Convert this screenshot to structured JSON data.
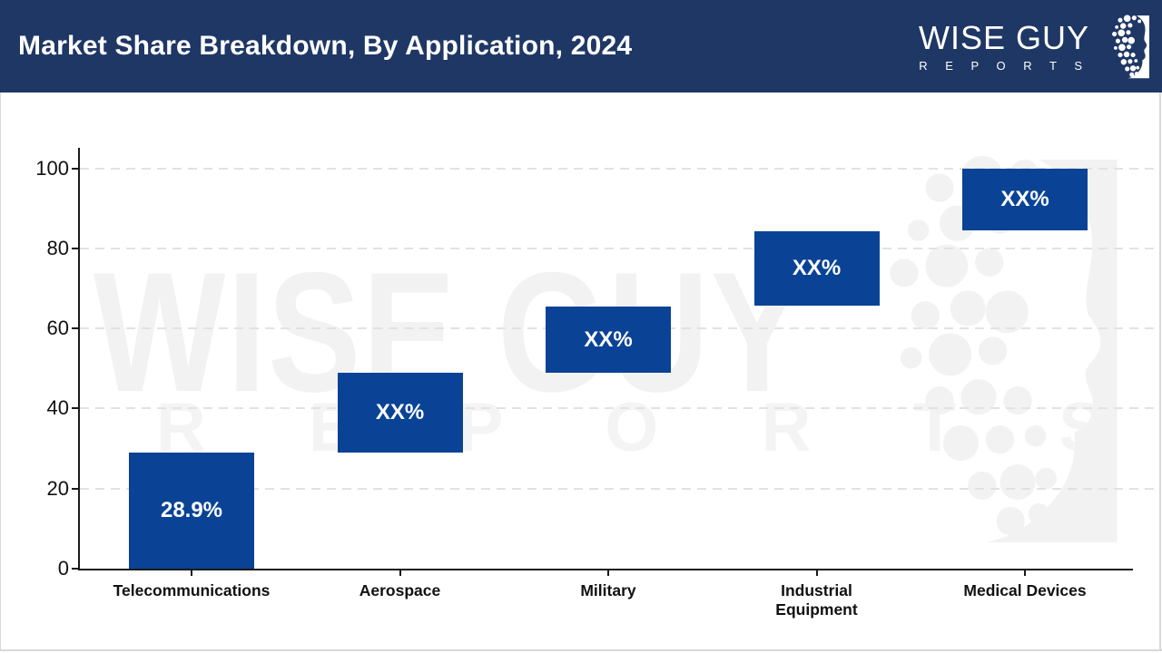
{
  "header": {
    "title": "Market Share Breakdown, By Application, 2024",
    "bg_color": "#1f3765",
    "logo": {
      "line1": "WISE GUY",
      "line2": "R E P O R T S"
    }
  },
  "watermark": {
    "line1": "WISE GUY",
    "line2": "R E P O R T S"
  },
  "chart_data": {
    "type": "bar",
    "subtype": "waterfall",
    "title": "Market Share Breakdown, By Application, 2024",
    "categories": [
      "Telecommunications",
      "Aerospace",
      "Military",
      "Industrial Equipment",
      "Medical Devices"
    ],
    "segments": [
      {
        "category": "Telecommunications",
        "start": 0,
        "end": 28.9,
        "label": "28.9%"
      },
      {
        "category": "Aerospace",
        "start": 28.9,
        "end": 48.9,
        "label": "XX%"
      },
      {
        "category": "Military",
        "start": 48.9,
        "end": 65.4,
        "label": "XX%"
      },
      {
        "category": "Industrial\nEquipment",
        "start": 65.6,
        "end": 84.3,
        "label": "XX%"
      },
      {
        "category": "Medical Devices",
        "start": 84.5,
        "end": 99.8,
        "label": "XX%"
      }
    ],
    "y_ticks": [
      0,
      20,
      40,
      60,
      80,
      100
    ],
    "ylim": [
      0,
      100
    ],
    "xlabel": "",
    "ylabel": "",
    "grid": true,
    "legend": "none",
    "bar_color": "#0a4396",
    "gridline_color": "#e2e2e2",
    "value_label_color": "#ffffff"
  }
}
